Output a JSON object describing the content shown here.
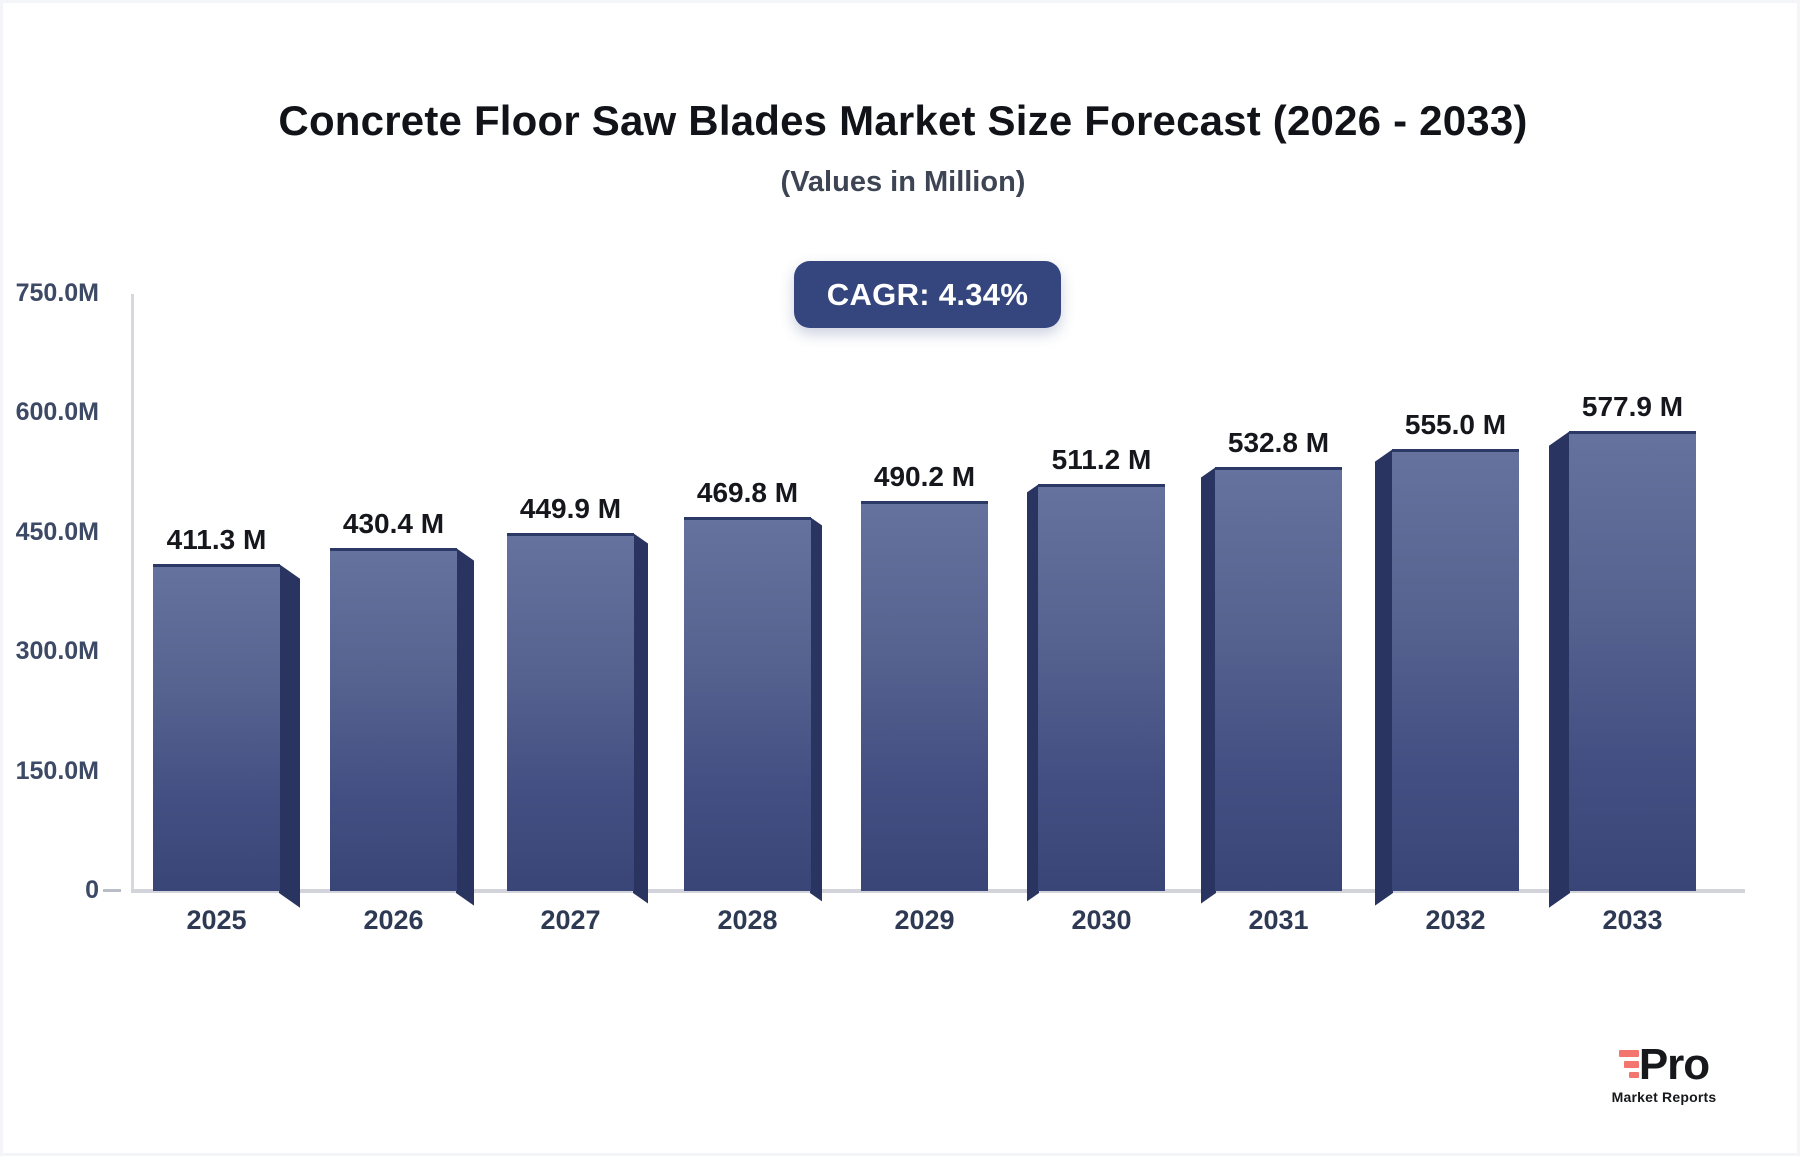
{
  "title": "Concrete Floor Saw Blades Market Size Forecast (2026 - 2033)",
  "subtitle": "(Values in Million)",
  "cagr_badge": "CAGR: 4.34%",
  "chart_data": {
    "type": "bar",
    "title": "Concrete Floor Saw Blades Market Size Forecast (2026 - 2033)",
    "subtitle": "(Values in Million)",
    "categories": [
      "2025",
      "2026",
      "2027",
      "2028",
      "2029",
      "2030",
      "2031",
      "2032",
      "2033"
    ],
    "values": [
      411.3,
      430.4,
      449.9,
      469.8,
      490.2,
      511.2,
      532.8,
      555.0,
      577.9
    ],
    "value_labels": [
      "411.3 M",
      "430.4 M",
      "449.9 M",
      "469.8 M",
      "490.2 M",
      "511.2 M",
      "532.8 M",
      "555.0 M",
      "577.9 M"
    ],
    "xlabel": "",
    "ylabel": "",
    "ylim": [
      0,
      750
    ],
    "y_ticks": [
      {
        "value": 750,
        "label": "750.0M"
      },
      {
        "value": 600,
        "label": "600.0M"
      },
      {
        "value": 450,
        "label": "450.0M"
      },
      {
        "value": 300,
        "label": "300.0M"
      },
      {
        "value": 150,
        "label": "150.0M"
      },
      {
        "value": 0,
        "label": "0"
      }
    ],
    "grid": false,
    "legend_position": "none",
    "bar_color_top": "#66729e",
    "bar_color_bottom": "#3a4577",
    "bar_side_color": "#2a3461",
    "axis_color": "#d3d4db"
  },
  "badge_color": "#35467e",
  "logo": {
    "brand": "Pro",
    "tagline": "Market Reports",
    "accent_color": "#f2766f"
  }
}
